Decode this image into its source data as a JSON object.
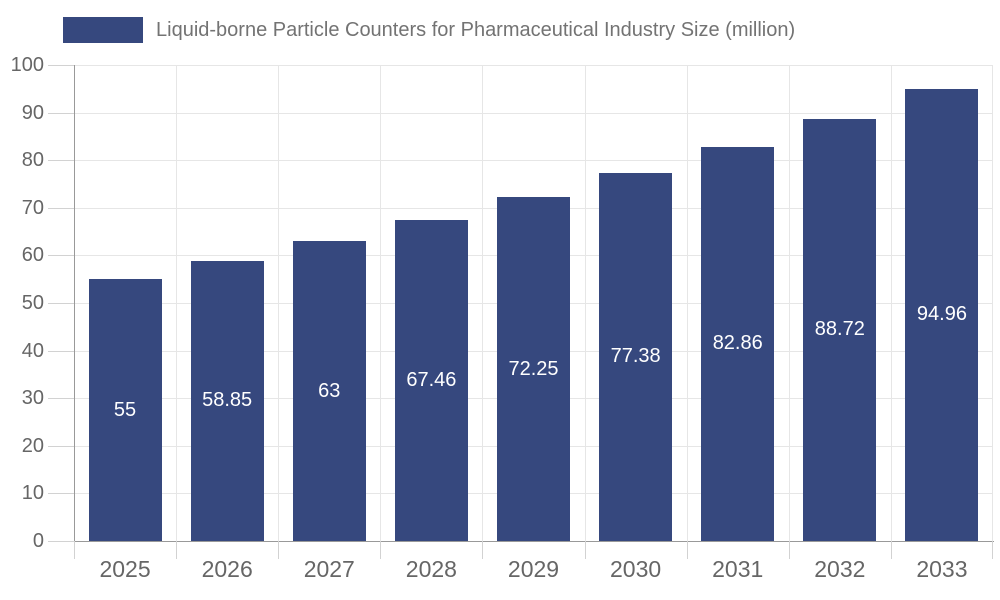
{
  "chart_data": {
    "type": "bar",
    "legend": "Liquid-borne Particle Counters for Pharmaceutical Industry Size (million)",
    "categories": [
      "2025",
      "2026",
      "2027",
      "2028",
      "2029",
      "2030",
      "2031",
      "2032",
      "2033"
    ],
    "values": [
      55,
      58.85,
      63,
      67.46,
      72.25,
      77.38,
      82.86,
      88.72,
      94.96
    ],
    "value_labels": [
      "55",
      "58.85",
      "63",
      "67.46",
      "72.25",
      "77.38",
      "82.86",
      "88.72",
      "94.96"
    ],
    "ylim": [
      0,
      100
    ],
    "ytick_step": 10,
    "ytick_labels": [
      "0",
      "10",
      "20",
      "30",
      "40",
      "50",
      "60",
      "70",
      "80",
      "90",
      "100"
    ],
    "grid": true,
    "legend_position": "top-left",
    "colors": {
      "bar": "#36487E",
      "grid": "#E6E6E6",
      "axis": "#999999",
      "tick": "#D2D2D2",
      "axis_label": "#666666",
      "legend_text": "#737373",
      "bar_label": "#FFFFFF",
      "background": "#FFFFFF"
    }
  }
}
